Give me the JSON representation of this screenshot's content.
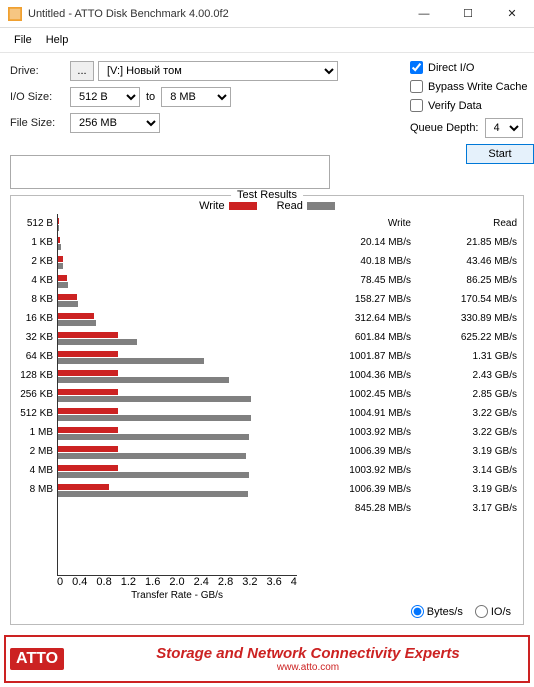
{
  "window": {
    "title": "Untitled - ATTO Disk Benchmark 4.00.0f2"
  },
  "menu": {
    "file": "File",
    "help": "Help"
  },
  "form": {
    "drive_label": "Drive:",
    "dots": "...",
    "drive_value": "[V:] Новый том",
    "io_label": "I/O Size:",
    "io_from": "512 B",
    "io_to_word": "to",
    "io_to": "8 MB",
    "filesize_label": "File Size:",
    "filesize_value": "256 MB",
    "direct_io": "Direct I/O",
    "bypass": "Bypass Write Cache",
    "verify": "Verify Data",
    "queue_depth": "Queue Depth:",
    "queue_value": "4",
    "start": "Start"
  },
  "results": {
    "title": "Test Results",
    "legend_write": "Write",
    "legend_read": "Read",
    "xaxis_label": "Transfer Rate - GB/s",
    "xmax": 4.0,
    "xticks": [
      "0",
      "0.4",
      "0.8",
      "1.2",
      "1.6",
      "2.0",
      "2.4",
      "2.8",
      "3.2",
      "3.6",
      "4"
    ],
    "write_color": "#cc2222",
    "read_color": "#808080",
    "col_write": "Write",
    "col_read": "Read",
    "rows": [
      {
        "label": "512 B",
        "w": 0.02014,
        "r": 0.02185,
        "wt": "20.14 MB/s",
        "rt": "21.85 MB/s"
      },
      {
        "label": "1 KB",
        "w": 0.04018,
        "r": 0.04346,
        "wt": "40.18 MB/s",
        "rt": "43.46 MB/s"
      },
      {
        "label": "2 KB",
        "w": 0.07845,
        "r": 0.08625,
        "wt": "78.45 MB/s",
        "rt": "86.25 MB/s"
      },
      {
        "label": "4 KB",
        "w": 0.15827,
        "r": 0.17054,
        "wt": "158.27 MB/s",
        "rt": "170.54 MB/s"
      },
      {
        "label": "8 KB",
        "w": 0.31264,
        "r": 0.33089,
        "wt": "312.64 MB/s",
        "rt": "330.89 MB/s"
      },
      {
        "label": "16 KB",
        "w": 0.60184,
        "r": 0.62522,
        "wt": "601.84 MB/s",
        "rt": "625.22 MB/s"
      },
      {
        "label": "32 KB",
        "w": 1.00187,
        "r": 1.31,
        "wt": "1001.87 MB/s",
        "rt": "1.31 GB/s"
      },
      {
        "label": "64 KB",
        "w": 1.00436,
        "r": 2.43,
        "wt": "1004.36 MB/s",
        "rt": "2.43 GB/s"
      },
      {
        "label": "128 KB",
        "w": 1.00245,
        "r": 2.85,
        "wt": "1002.45 MB/s",
        "rt": "2.85 GB/s"
      },
      {
        "label": "256 KB",
        "w": 1.00491,
        "r": 3.22,
        "wt": "1004.91 MB/s",
        "rt": "3.22 GB/s"
      },
      {
        "label": "512 KB",
        "w": 1.00392,
        "r": 3.22,
        "wt": "1003.92 MB/s",
        "rt": "3.22 GB/s"
      },
      {
        "label": "1 MB",
        "w": 1.00639,
        "r": 3.19,
        "wt": "1006.39 MB/s",
        "rt": "3.19 GB/s"
      },
      {
        "label": "2 MB",
        "w": 1.00392,
        "r": 3.14,
        "wt": "1003.92 MB/s",
        "rt": "3.14 GB/s"
      },
      {
        "label": "4 MB",
        "w": 1.00639,
        "r": 3.19,
        "wt": "1006.39 MB/s",
        "rt": "3.19 GB/s"
      },
      {
        "label": "8 MB",
        "w": 0.84528,
        "r": 3.17,
        "wt": "845.28 MB/s",
        "rt": "3.17 GB/s"
      }
    ],
    "bytes_label": "Bytes/s",
    "ios_label": "IO/s"
  },
  "footer": {
    "logo": "ATTO",
    "slogan": "Storage and Network Connectivity Experts",
    "url": "www.atto.com"
  }
}
